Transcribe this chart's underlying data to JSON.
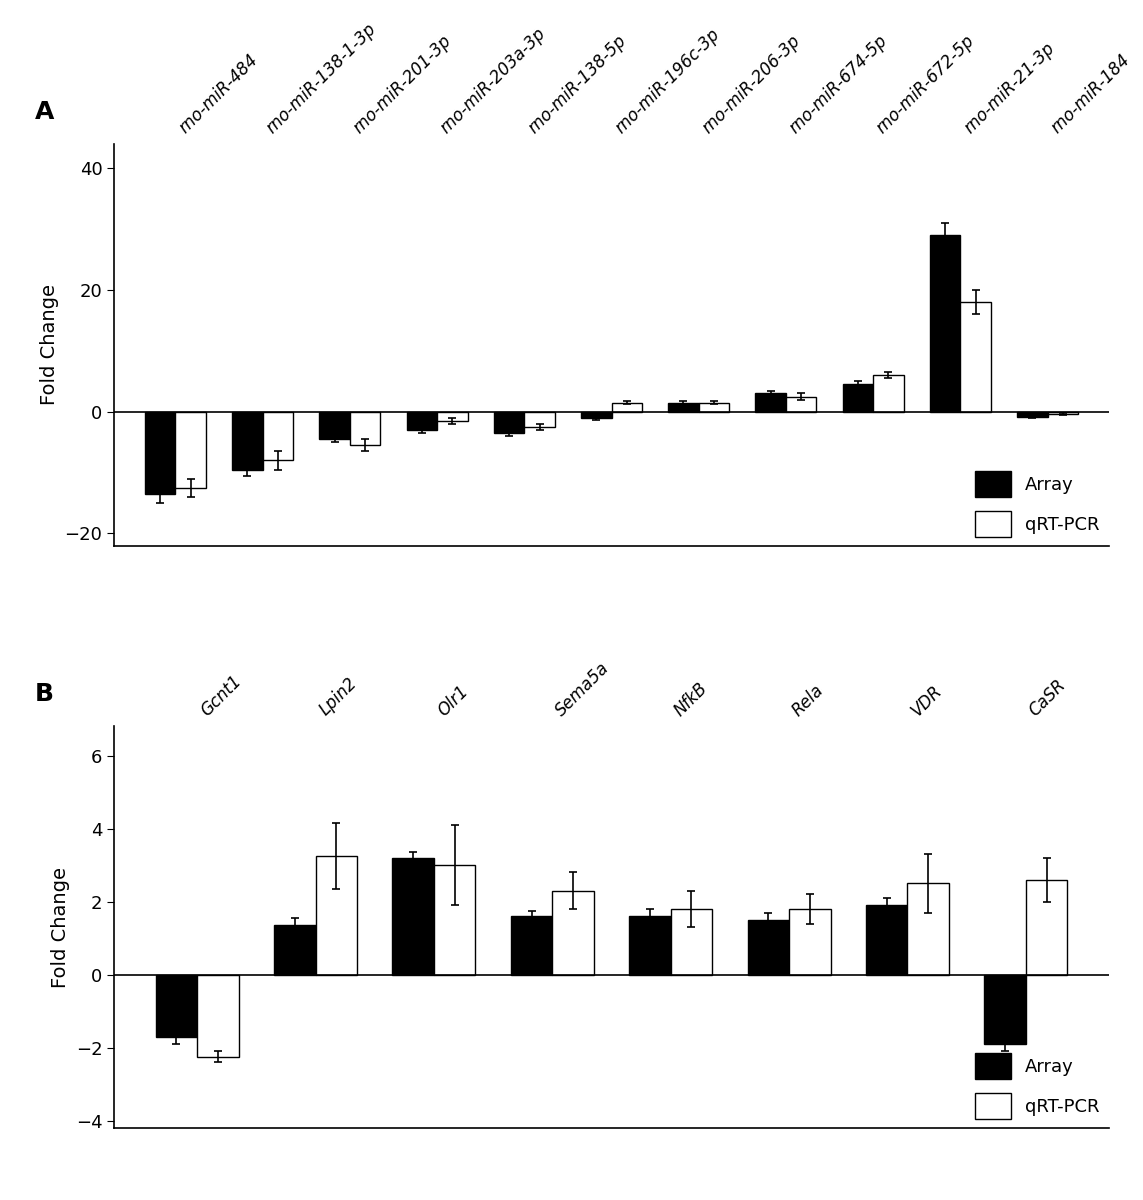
{
  "panel_A": {
    "categories": [
      "rno-miR-484",
      "rno-miR-138-1-3p",
      "rno-miR-201-3p",
      "rno-miR-203a-3p",
      "rno-miR-138-5p",
      "rno-miR-196c-3p",
      "rno-miR-206-3p",
      "rno-miR-674-5p",
      "rno-miR-672-5p",
      "rno-miR-21-3p",
      "rno-miR-184"
    ],
    "array_values": [
      -13.5,
      -9.5,
      -4.5,
      -3.0,
      -3.5,
      -1.0,
      1.5,
      3.0,
      4.5,
      29.0,
      -0.8
    ],
    "qrtpcr_values": [
      -12.5,
      -8.0,
      -5.5,
      -1.5,
      -2.5,
      1.5,
      1.5,
      2.5,
      6.0,
      18.0,
      -0.4
    ],
    "array_errors": [
      1.5,
      1.0,
      0.5,
      0.5,
      0.5,
      0.3,
      0.3,
      0.4,
      0.5,
      2.0,
      0.2
    ],
    "qrtpcr_errors": [
      1.5,
      1.5,
      1.0,
      0.5,
      0.5,
      0.3,
      0.3,
      0.5,
      0.5,
      2.0,
      0.2
    ],
    "ylim": [
      -22,
      44
    ],
    "yticks": [
      -20,
      0,
      20,
      40
    ],
    "ylabel": "Fold Change",
    "label": "A"
  },
  "panel_B": {
    "categories": [
      "Gcnt1",
      "Lpin2",
      "Olr1",
      "Sema5a",
      "NfkB",
      "Rela",
      "VDR",
      "CaSR"
    ],
    "array_values": [
      -1.7,
      1.35,
      3.2,
      1.6,
      1.6,
      1.5,
      1.9,
      -1.9
    ],
    "qrtpcr_values": [
      -2.25,
      3.25,
      3.0,
      2.3,
      1.8,
      1.8,
      2.5,
      2.6
    ],
    "array_errors": [
      0.2,
      0.2,
      0.15,
      0.15,
      0.2,
      0.2,
      0.2,
      0.2
    ],
    "qrtpcr_errors": [
      0.15,
      0.9,
      1.1,
      0.5,
      0.5,
      0.4,
      0.8,
      0.6
    ],
    "ylim": [
      -4.2,
      6.8
    ],
    "yticks": [
      -4,
      -2,
      0,
      2,
      4,
      6
    ],
    "ylabel": "Fold Change",
    "label": "B"
  },
  "bar_width": 0.35,
  "array_color": "#000000",
  "qrtpcr_color": "#ffffff",
  "edge_color": "#000000",
  "legend_array": "Array",
  "legend_qrtpcr": "qRT-PCR",
  "background_color": "#ffffff",
  "panel_label_fontsize": 18,
  "tick_fontsize": 13,
  "axis_label_fontsize": 14,
  "legend_fontsize": 13,
  "cat_label_fontsize": 12
}
